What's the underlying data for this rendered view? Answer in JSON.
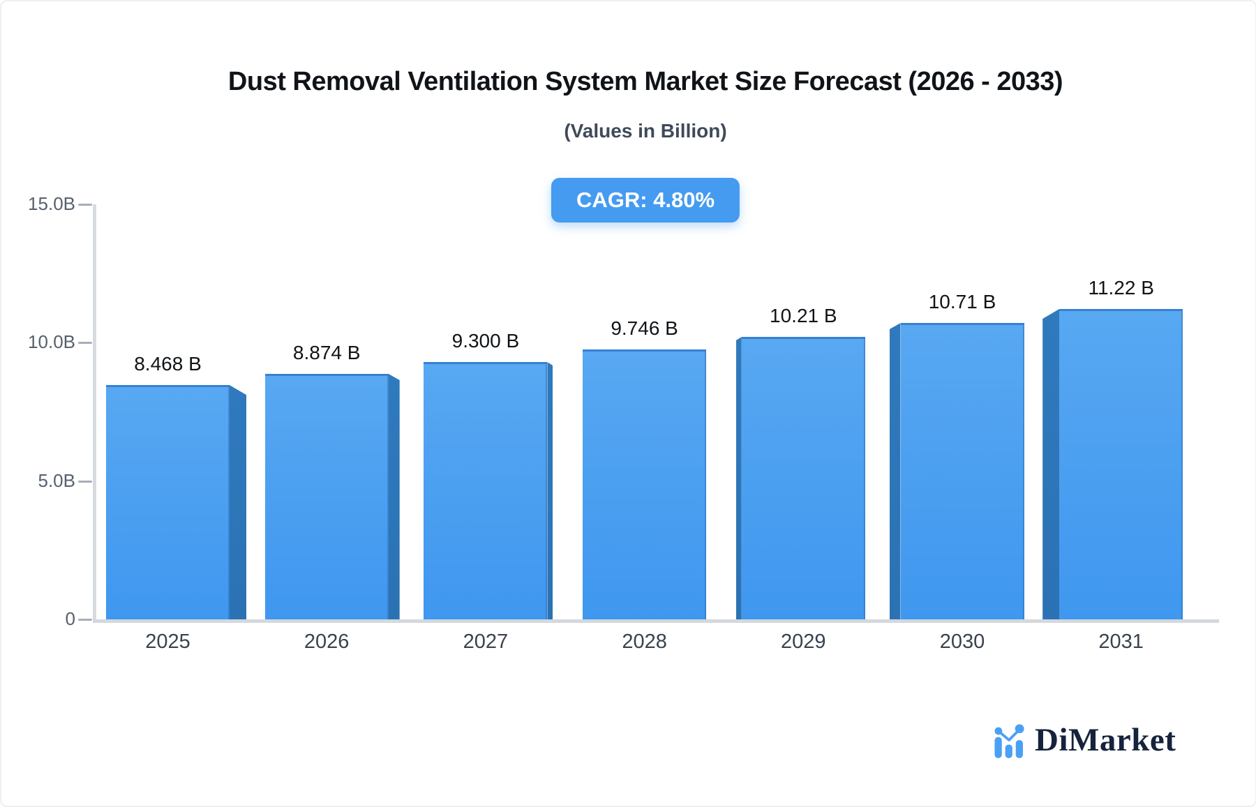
{
  "header": {
    "title": "Dust Removal Ventilation System Market Size Forecast (2026 - 2033)",
    "subtitle": "(Values in Billion)",
    "cagr_badge": "CAGR: 4.80%"
  },
  "chart_data": {
    "type": "bar",
    "title": "Dust Removal Ventilation System Market Size Forecast (2026 - 2033)",
    "subtitle": "(Values in Billion)",
    "annotation": "CAGR: 4.80%",
    "categories": [
      "2025",
      "2026",
      "2027",
      "2028",
      "2029",
      "2030",
      "2031"
    ],
    "values": [
      8.468,
      8.874,
      9.3,
      9.746,
      10.21,
      10.71,
      11.22
    ],
    "value_labels": [
      "8.468 B",
      "8.874 B",
      "9.300 B",
      "9.746 B",
      "10.21 B",
      "10.71 B",
      "11.22 B"
    ],
    "xlabel": "",
    "ylabel": "",
    "ylim": [
      0,
      15
    ],
    "yticks": [
      {
        "value": 0,
        "label": "0"
      },
      {
        "value": 5,
        "label": "5.0B"
      },
      {
        "value": 10,
        "label": "10.0B"
      },
      {
        "value": 15,
        "label": "15.0B"
      }
    ],
    "grid": false,
    "legend": false,
    "style": "pseudo-3d bars, perspective sides facing center"
  },
  "colors": {
    "accent": "#459BEF",
    "bar_face_top": "#58A8F2",
    "bar_face_bottom": "#3F97EF",
    "bar_side": "#2D76BA",
    "axis": "#D7DADE",
    "brand_navy": "#16233C",
    "brand_blue": "#4AA0F5"
  },
  "footer": {
    "brand": "DiMarket"
  }
}
